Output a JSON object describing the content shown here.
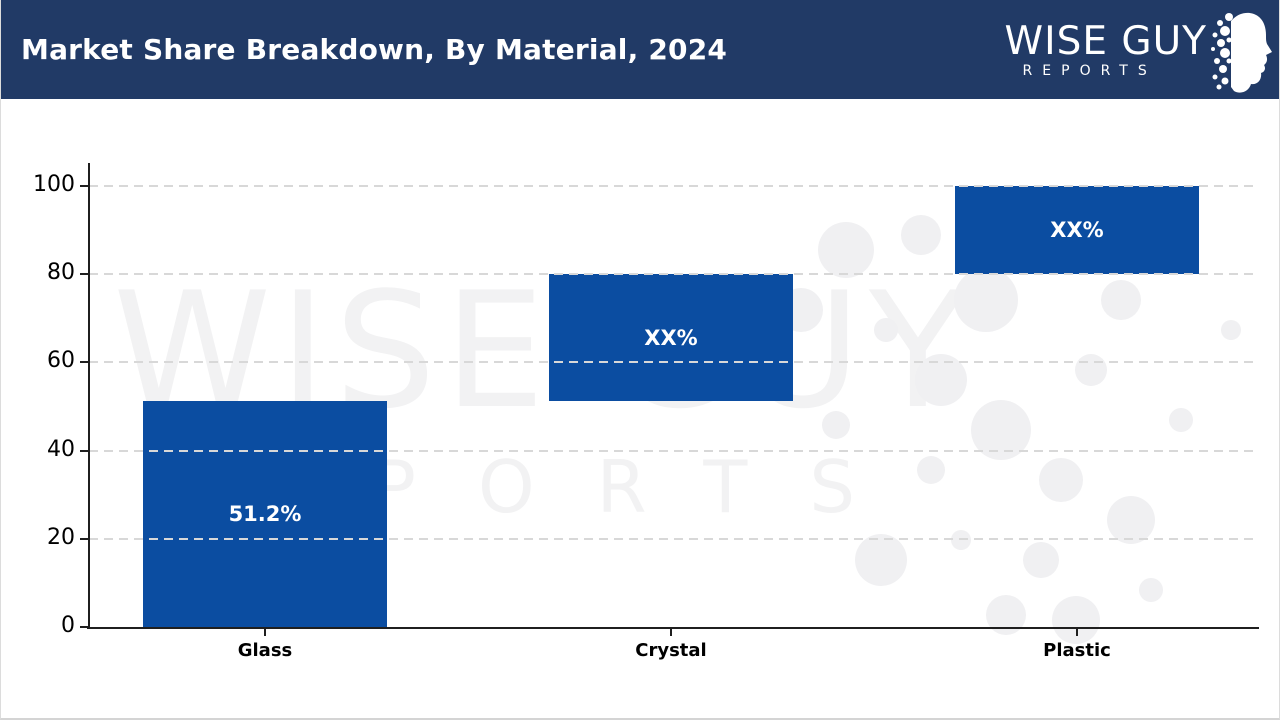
{
  "header": {
    "title": "Market Share Breakdown, By Material, 2024",
    "logo": {
      "wordmark": "WISE GUY",
      "subtext": "REPORTS",
      "icon": "head-profile-dots-icon"
    }
  },
  "watermark": {
    "wordmark": "WISE GUY",
    "subtext": "REPORTS"
  },
  "chart_data": {
    "type": "bar",
    "variant": "floating-waterfall",
    "title": "Market Share Breakdown, By Material, 2024",
    "categories": [
      "Glass",
      "Crystal",
      "Plastic"
    ],
    "segments": [
      {
        "category": "Glass",
        "start": 0,
        "end": 51.2,
        "label": "51.2%"
      },
      {
        "category": "Crystal",
        "start": 51.2,
        "end": 80,
        "label": "XX%"
      },
      {
        "category": "Plastic",
        "start": 80,
        "end": 100,
        "label": "XX%"
      }
    ],
    "xlabel": "",
    "ylabel": "",
    "ylim": [
      0,
      105
    ],
    "yticks": [
      0,
      20,
      40,
      60,
      80,
      100
    ],
    "grid": "horizontal-dashed",
    "legend": "none",
    "colors": {
      "bar": "#0b4da1",
      "bar_label": "#ffffff",
      "grid": "#d8d8d8",
      "axis": "#1f1f1f",
      "header_bg": "#213a66",
      "watermark": "#f2f2f3"
    }
  }
}
